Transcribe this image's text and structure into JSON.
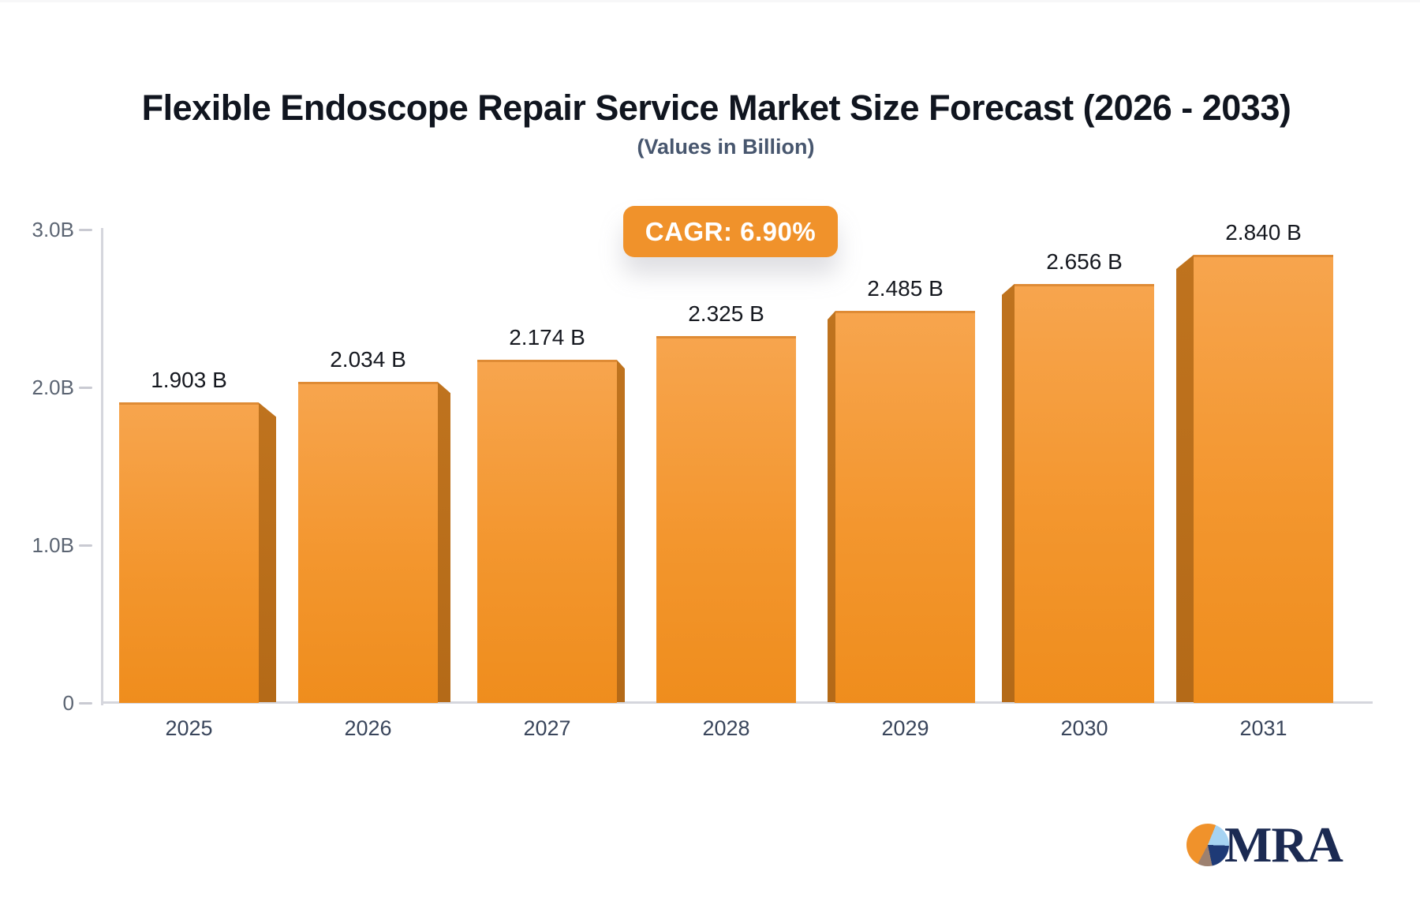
{
  "title": "Flexible Endoscope Repair Service Market Size Forecast (2026 - 2033)",
  "subtitle": "(Values in Billion)",
  "cagr_badge": "CAGR: 6.90%",
  "chart_data": {
    "type": "bar",
    "title": "Flexible Endoscope Repair Service Market Size Forecast (2026 - 2033)",
    "subtitle": "(Values in Billion)",
    "annotation": "CAGR: 6.90%",
    "categories": [
      "2025",
      "2026",
      "2027",
      "2028",
      "2029",
      "2030",
      "2031"
    ],
    "values": [
      1.903,
      2.034,
      2.174,
      2.325,
      2.485,
      2.656,
      2.84
    ],
    "value_labels": [
      "1.903 B",
      "2.034 B",
      "2.174 B",
      "2.325 B",
      "2.485 B",
      "2.656 B",
      "2.840 B"
    ],
    "y_axis": {
      "range": [
        0,
        3.0
      ],
      "ticks": [
        {
          "label": "3.0B",
          "value": 3.0
        },
        {
          "label": "2.0B",
          "value": 2.0
        },
        {
          "label": "1.0B",
          "value": 1.0
        },
        {
          "label": "0",
          "value": 0
        }
      ]
    },
    "grid": false,
    "legend": false,
    "bar_face_color_top": "#f7a54e",
    "bar_face_color_bottom": "#ef8d1d",
    "bar_side_color": "#bf731e",
    "style": "3d-extruded-bars"
  },
  "logo": {
    "text": "MRA",
    "text_color": "#1b2a52",
    "pie_colors": {
      "orange": "#f0922b",
      "light_blue": "#a6d3f2",
      "navy": "#1e3a76",
      "taupe": "#9d8170"
    }
  }
}
